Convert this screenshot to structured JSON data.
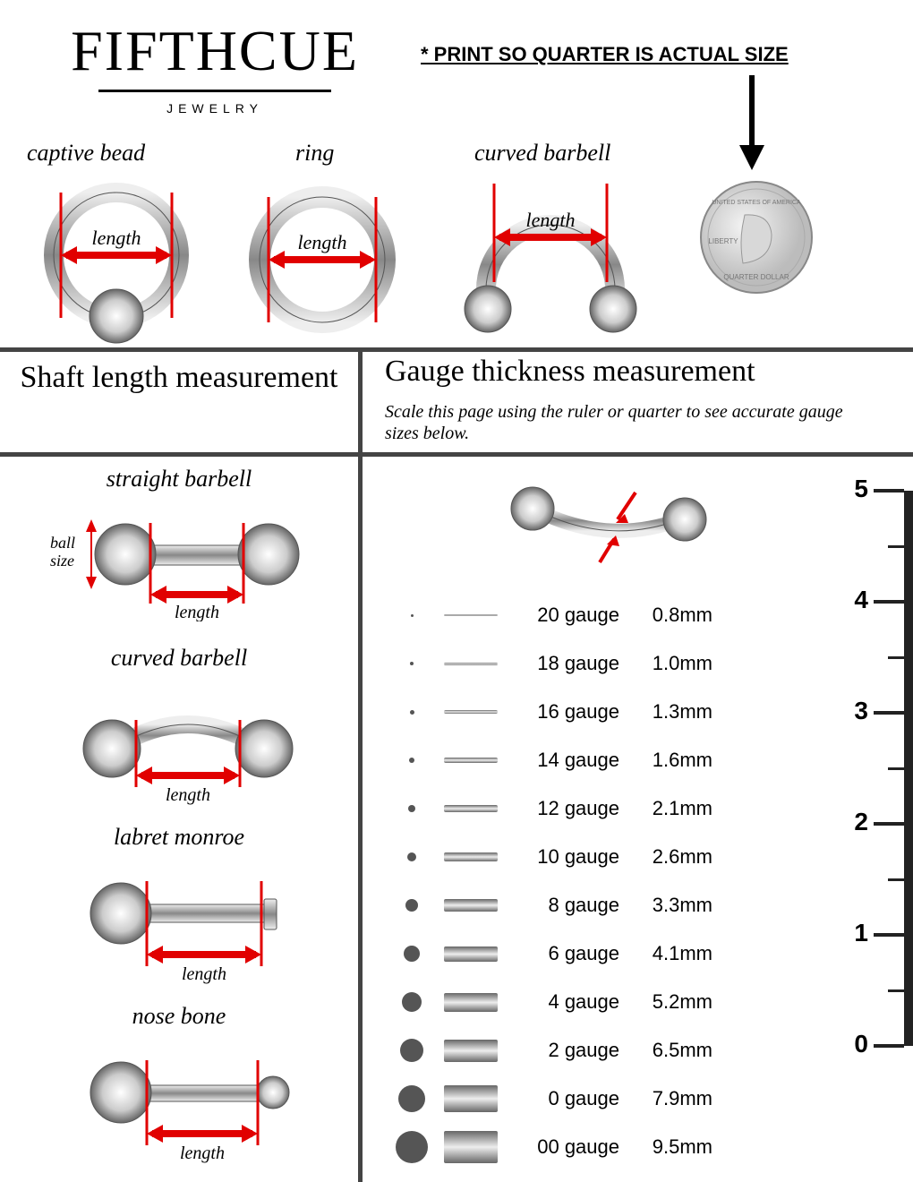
{
  "brand": {
    "name": "FIFTHCUE",
    "tagline": "JEWELRY"
  },
  "print_note": "* PRINT SO QUARTER IS ACTUAL SIZE",
  "top_labels": {
    "captive_bead": "captive bead",
    "ring": "ring",
    "curved_barbell": "curved barbell"
  },
  "length_word": "length",
  "ball_size": "ball\nsize",
  "sections": {
    "shaft_title": "Shaft length measurement",
    "gauge_title": "Gauge thickness measurement",
    "gauge_sub": "Scale this page using the ruler or quarter to see accurate gauge sizes below."
  },
  "shaft_items": [
    {
      "label": "straight barbell"
    },
    {
      "label": "curved barbell"
    },
    {
      "label": "labret monroe"
    },
    {
      "label": "nose bone"
    }
  ],
  "gauges": [
    {
      "g": "20 gauge",
      "mm": "0.8mm",
      "dot": 3,
      "bar": 2
    },
    {
      "g": "18 gauge",
      "mm": "1.0mm",
      "dot": 4,
      "bar": 3
    },
    {
      "g": "16 gauge",
      "mm": "1.3mm",
      "dot": 5,
      "bar": 4
    },
    {
      "g": "14 gauge",
      "mm": "1.6mm",
      "dot": 6,
      "bar": 6
    },
    {
      "g": "12 gauge",
      "mm": "2.1mm",
      "dot": 8,
      "bar": 8
    },
    {
      "g": "10 gauge",
      "mm": "2.6mm",
      "dot": 10,
      "bar": 10
    },
    {
      "g": "8 gauge",
      "mm": "3.3mm",
      "dot": 14,
      "bar": 14
    },
    {
      "g": "6 gauge",
      "mm": "4.1mm",
      "dot": 18,
      "bar": 17
    },
    {
      "g": "4 gauge",
      "mm": "5.2mm",
      "dot": 22,
      "bar": 21
    },
    {
      "g": "2 gauge",
      "mm": "6.5mm",
      "dot": 26,
      "bar": 25
    },
    {
      "g": "0 gauge",
      "mm": "7.9mm",
      "dot": 30,
      "bar": 30
    },
    {
      "g": "00 gauge",
      "mm": "9.5mm",
      "dot": 36,
      "bar": 36
    }
  ],
  "ruler": {
    "max": 5,
    "min": 0
  },
  "colors": {
    "arrow": "#e10000",
    "guide": "#e10000",
    "metal1": "#bbb",
    "metal2": "#888"
  }
}
